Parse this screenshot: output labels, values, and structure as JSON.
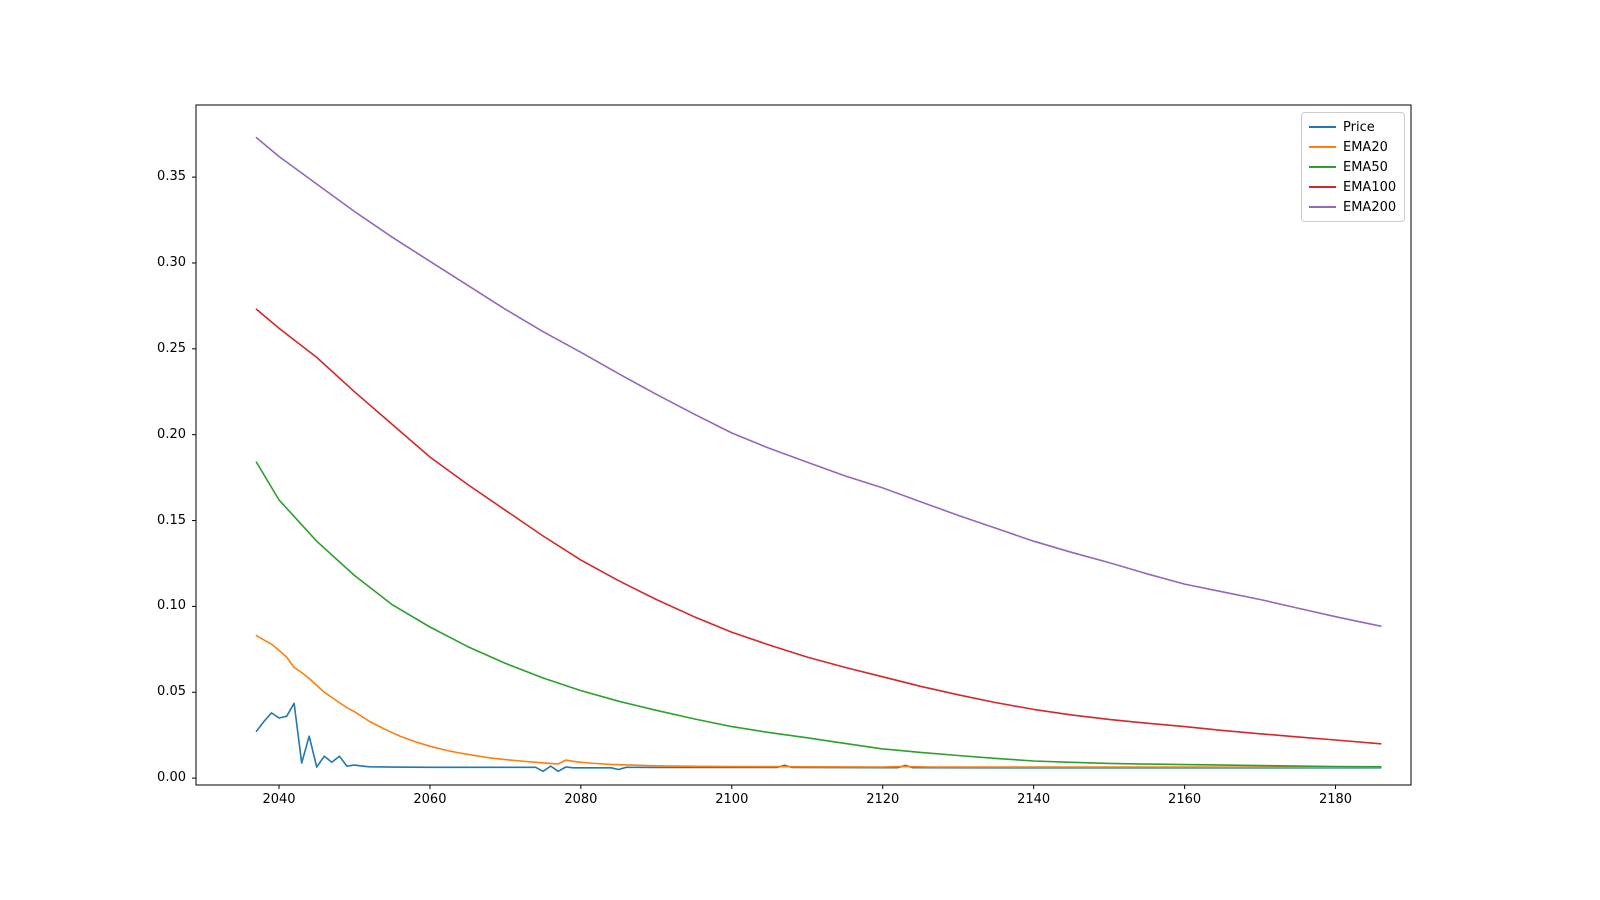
{
  "chart_data": {
    "type": "line",
    "title": "",
    "xlabel": "",
    "ylabel": "",
    "grid": false,
    "background_color": "#ffffff",
    "axis_color": "#000000",
    "xlim": [
      2029,
      2190
    ],
    "ylim": [
      -0.004,
      0.392
    ],
    "x_ticks": [
      2040,
      2060,
      2080,
      2100,
      2120,
      2140,
      2160,
      2180
    ],
    "x_tick_labels": [
      "2040",
      "2060",
      "2080",
      "2100",
      "2120",
      "2140",
      "2160",
      "2180"
    ],
    "y_ticks": [
      0.0,
      0.05,
      0.1,
      0.15,
      0.2,
      0.25,
      0.3,
      0.35
    ],
    "y_tick_labels": [
      "0.00",
      "0.05",
      "0.10",
      "0.15",
      "0.20",
      "0.25",
      "0.30",
      "0.35"
    ],
    "legend": {
      "position": "upper right",
      "entries": [
        "Price",
        "EMA20",
        "EMA50",
        "EMA100",
        "EMA200"
      ]
    },
    "series": [
      {
        "name": "Price",
        "color": "#1f77b4",
        "points": [
          [
            2037,
            0.0273
          ],
          [
            2038,
            0.033
          ],
          [
            2039,
            0.038
          ],
          [
            2040,
            0.035
          ],
          [
            2041,
            0.036
          ],
          [
            2042,
            0.0436
          ],
          [
            2043,
            0.0088
          ],
          [
            2044,
            0.0244
          ],
          [
            2045,
            0.0064
          ],
          [
            2046,
            0.0128
          ],
          [
            2047,
            0.0093
          ],
          [
            2048,
            0.0128
          ],
          [
            2049,
            0.007
          ],
          [
            2050,
            0.0076
          ],
          [
            2051,
            0.007
          ],
          [
            2052,
            0.0066
          ],
          [
            2055,
            0.0064
          ],
          [
            2060,
            0.0063
          ],
          [
            2065,
            0.0063
          ],
          [
            2070,
            0.0063
          ],
          [
            2074,
            0.0063
          ],
          [
            2075,
            0.004
          ],
          [
            2076,
            0.007
          ],
          [
            2077,
            0.004
          ],
          [
            2078,
            0.0065
          ],
          [
            2079,
            0.006
          ],
          [
            2084,
            0.006
          ],
          [
            2085,
            0.005
          ],
          [
            2086,
            0.0063
          ],
          [
            2090,
            0.0062
          ],
          [
            2100,
            0.0062
          ],
          [
            2106,
            0.0062
          ],
          [
            2107,
            0.0075
          ],
          [
            2108,
            0.0062
          ],
          [
            2120,
            0.0061
          ],
          [
            2122,
            0.0061
          ],
          [
            2123,
            0.0074
          ],
          [
            2124,
            0.0061
          ],
          [
            2140,
            0.006
          ],
          [
            2160,
            0.006
          ],
          [
            2186,
            0.006
          ]
        ]
      },
      {
        "name": "EMA20",
        "color": "#ff7f0e",
        "points": [
          [
            2037,
            0.083
          ],
          [
            2038,
            0.0805
          ],
          [
            2039,
            0.078
          ],
          [
            2040,
            0.0745
          ],
          [
            2041,
            0.0705
          ],
          [
            2042,
            0.0645
          ],
          [
            2043,
            0.0615
          ],
          [
            2044,
            0.058
          ],
          [
            2045,
            0.054
          ],
          [
            2046,
            0.05
          ],
          [
            2047,
            0.047
          ],
          [
            2048,
            0.044
          ],
          [
            2049,
            0.041
          ],
          [
            2050,
            0.0387
          ],
          [
            2052,
            0.033
          ],
          [
            2054,
            0.0285
          ],
          [
            2056,
            0.0245
          ],
          [
            2058,
            0.0213
          ],
          [
            2060,
            0.0186
          ],
          [
            2062,
            0.0164
          ],
          [
            2064,
            0.0146
          ],
          [
            2066,
            0.0131
          ],
          [
            2068,
            0.0118
          ],
          [
            2070,
            0.0108
          ],
          [
            2072,
            0.01
          ],
          [
            2074,
            0.0092
          ],
          [
            2076,
            0.0086
          ],
          [
            2077,
            0.0083
          ],
          [
            2078,
            0.0105
          ],
          [
            2079,
            0.0098
          ],
          [
            2080,
            0.0092
          ],
          [
            2082,
            0.0085
          ],
          [
            2084,
            0.008
          ],
          [
            2086,
            0.0077
          ],
          [
            2090,
            0.0072
          ],
          [
            2095,
            0.0069
          ],
          [
            2100,
            0.0068
          ],
          [
            2105,
            0.0067
          ],
          [
            2110,
            0.0066
          ],
          [
            2120,
            0.0065
          ],
          [
            2123,
            0.0068
          ],
          [
            2126,
            0.0065
          ],
          [
            2140,
            0.0064
          ],
          [
            2160,
            0.0064
          ],
          [
            2186,
            0.0063
          ]
        ]
      },
      {
        "name": "EMA50",
        "color": "#2ca02c",
        "points": [
          [
            2037,
            0.184
          ],
          [
            2040,
            0.162
          ],
          [
            2045,
            0.138
          ],
          [
            2050,
            0.118
          ],
          [
            2055,
            0.101
          ],
          [
            2060,
            0.088
          ],
          [
            2065,
            0.0766
          ],
          [
            2070,
            0.0668
          ],
          [
            2075,
            0.0583
          ],
          [
            2080,
            0.051
          ],
          [
            2085,
            0.0448
          ],
          [
            2090,
            0.0395
          ],
          [
            2095,
            0.0345
          ],
          [
            2100,
            0.03
          ],
          [
            2105,
            0.0265
          ],
          [
            2110,
            0.0235
          ],
          [
            2115,
            0.0202
          ],
          [
            2120,
            0.017
          ],
          [
            2125,
            0.015
          ],
          [
            2130,
            0.0132
          ],
          [
            2135,
            0.0115
          ],
          [
            2140,
            0.01
          ],
          [
            2145,
            0.0092
          ],
          [
            2150,
            0.0086
          ],
          [
            2155,
            0.0082
          ],
          [
            2160,
            0.0079
          ],
          [
            2170,
            0.0073
          ],
          [
            2180,
            0.0068
          ],
          [
            2186,
            0.0066
          ]
        ]
      },
      {
        "name": "EMA100",
        "color": "#d62728",
        "points": [
          [
            2037,
            0.273
          ],
          [
            2040,
            0.262
          ],
          [
            2045,
            0.245
          ],
          [
            2050,
            0.225
          ],
          [
            2055,
            0.206
          ],
          [
            2060,
            0.187
          ],
          [
            2065,
            0.171
          ],
          [
            2070,
            0.156
          ],
          [
            2075,
            0.141
          ],
          [
            2080,
            0.127
          ],
          [
            2085,
            0.115
          ],
          [
            2090,
            0.104
          ],
          [
            2095,
            0.094
          ],
          [
            2100,
            0.085
          ],
          [
            2105,
            0.0775
          ],
          [
            2110,
            0.0705
          ],
          [
            2115,
            0.0645
          ],
          [
            2120,
            0.059
          ],
          [
            2125,
            0.0535
          ],
          [
            2130,
            0.0485
          ],
          [
            2135,
            0.044
          ],
          [
            2140,
            0.04
          ],
          [
            2145,
            0.0368
          ],
          [
            2150,
            0.0342
          ],
          [
            2155,
            0.032
          ],
          [
            2160,
            0.03
          ],
          [
            2165,
            0.0278
          ],
          [
            2170,
            0.0258
          ],
          [
            2175,
            0.024
          ],
          [
            2180,
            0.0222
          ],
          [
            2186,
            0.02
          ]
        ]
      },
      {
        "name": "EMA200",
        "color": "#9467bd",
        "points": [
          [
            2037,
            0.373
          ],
          [
            2040,
            0.362
          ],
          [
            2045,
            0.346
          ],
          [
            2050,
            0.33
          ],
          [
            2055,
            0.315
          ],
          [
            2060,
            0.301
          ],
          [
            2065,
            0.287
          ],
          [
            2070,
            0.273
          ],
          [
            2075,
            0.26
          ],
          [
            2080,
            0.248
          ],
          [
            2085,
            0.2355
          ],
          [
            2090,
            0.2235
          ],
          [
            2095,
            0.212
          ],
          [
            2100,
            0.201
          ],
          [
            2105,
            0.192
          ],
          [
            2110,
            0.184
          ],
          [
            2115,
            0.176
          ],
          [
            2120,
            0.169
          ],
          [
            2125,
            0.161
          ],
          [
            2130,
            0.153
          ],
          [
            2135,
            0.1455
          ],
          [
            2140,
            0.138
          ],
          [
            2145,
            0.1315
          ],
          [
            2150,
            0.1255
          ],
          [
            2155,
            0.119
          ],
          [
            2160,
            0.113
          ],
          [
            2165,
            0.1085
          ],
          [
            2170,
            0.104
          ],
          [
            2175,
            0.099
          ],
          [
            2180,
            0.094
          ],
          [
            2186,
            0.0885
          ]
        ]
      }
    ]
  }
}
